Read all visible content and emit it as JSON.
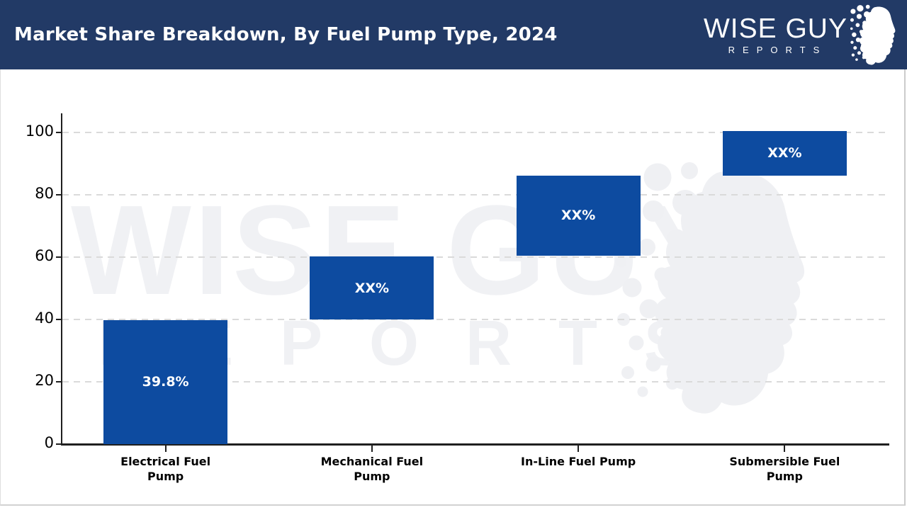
{
  "header": {
    "title": "Market Share Breakdown, By Fuel Pump Type, 2024",
    "logo": {
      "line1": "WISE GUY",
      "line2": "REPORTS"
    }
  },
  "watermark": {
    "line1": "WISE GUY",
    "line2": "REPORTS"
  },
  "colors": {
    "header_bg": "#223A66",
    "bar_blue": "#0D4BA0",
    "bar_label": "#FFFFFF",
    "gridline": "#DADADA",
    "axis": "#1F1F1F",
    "watermark_gray": "#F0F1F4"
  },
  "chart_data": {
    "type": "bar",
    "subtype": "waterfall",
    "title": "Market Share Breakdown, By Fuel Pump Type, 2024",
    "categories": [
      "Electrical Fuel Pump",
      "Mechanical Fuel Pump",
      "In-Line Fuel Pump",
      "Submersible Fuel Pump"
    ],
    "category_label_lines": [
      [
        "Electrical Fuel",
        "Pump"
      ],
      [
        "Mechanical Fuel",
        "Pump"
      ],
      [
        "In-Line Fuel Pump"
      ],
      [
        "Submersible Fuel",
        "Pump"
      ]
    ],
    "segments": [
      {
        "category": "Electrical Fuel Pump",
        "start": 0,
        "end": 39.8,
        "label": "39.8%"
      },
      {
        "category": "Mechanical Fuel Pump",
        "start": 40,
        "end": 60.2,
        "label": "XX%"
      },
      {
        "category": "In-Line Fuel Pump",
        "start": 60.5,
        "end": 86.1,
        "label": "XX%"
      },
      {
        "category": "Submersible Fuel Pump",
        "start": 86.2,
        "end": 100.4,
        "label": "XX%"
      }
    ],
    "xlabel": "",
    "ylabel": "",
    "ylim": [
      0,
      105
    ],
    "yticks": [
      0,
      20,
      40,
      60,
      80,
      100
    ],
    "grid": "horizontal-dashed",
    "legend": "none",
    "bar_color": "#0D4BA0"
  }
}
